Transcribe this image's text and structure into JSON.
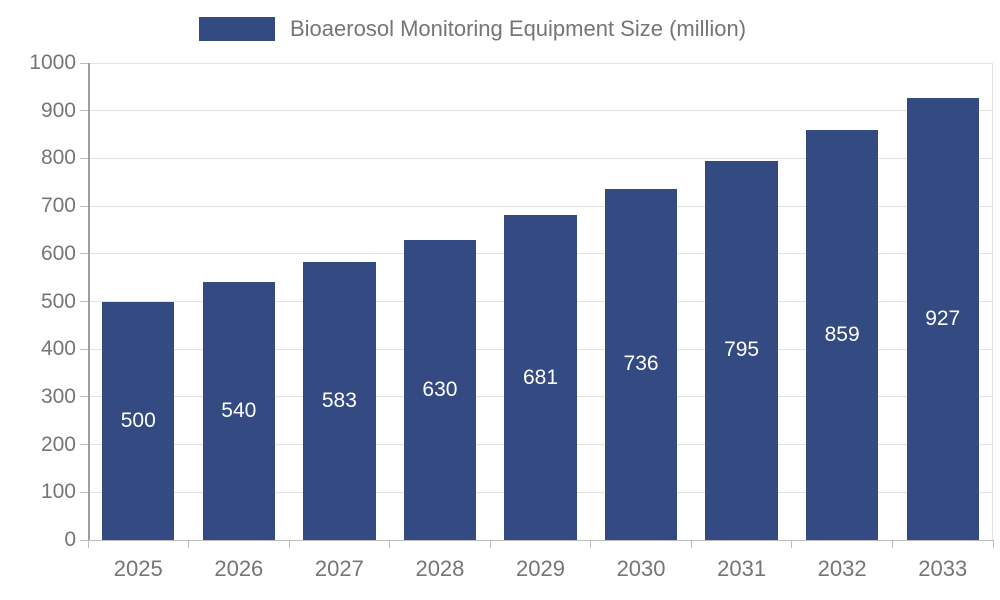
{
  "legend": {
    "label": "Bioaerosol Monitoring Equipment Size (million)"
  },
  "chart_data": {
    "type": "bar",
    "title": "Bioaerosol Monitoring Equipment Size (million)",
    "categories": [
      "2025",
      "2026",
      "2027",
      "2028",
      "2029",
      "2030",
      "2031",
      "2032",
      "2033"
    ],
    "series": [
      {
        "name": "Bioaerosol Monitoring Equipment Size (million)",
        "values": [
          500,
          540,
          583,
          630,
          681,
          736,
          795,
          859,
          927
        ]
      }
    ],
    "xlabel": "",
    "ylabel": "",
    "ylim": [
      0,
      1000
    ],
    "y_ticks": [
      0,
      100,
      200,
      300,
      400,
      500,
      600,
      700,
      800,
      900,
      1000
    ],
    "grid": true,
    "legend_position": "top",
    "value_labels": "inside-middle"
  },
  "colors": {
    "bar": "#344a83",
    "grid": "#e3e3e3",
    "axis": "#9e9e9e",
    "tick": "#bdbdbd",
    "text": "#757575",
    "value_label": "#ffffff",
    "background": "#ffffff"
  }
}
